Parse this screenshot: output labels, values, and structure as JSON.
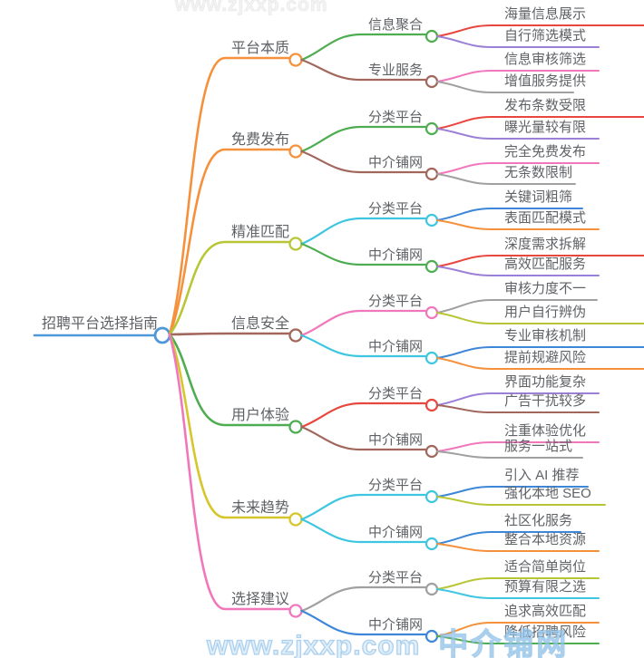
{
  "title": "招聘平台选择指南",
  "palette": {
    "root": "#4E97D8",
    "orange": "#F5913C",
    "green": "#4FAD51",
    "brown": "#A2675C",
    "olive": "#B8C636",
    "yellow": "#D5C62B",
    "pink": "#F177BC",
    "cyan": "#3EC6E0",
    "red": "#E8473F",
    "purple": "#9C7FD6",
    "gray": "#A0A0A0",
    "blue": "#3D86D8"
  },
  "root": {
    "label": "招聘平台选择指南",
    "color": "root"
  },
  "branches": [
    {
      "label": "平台本质",
      "color": "orange",
      "children": [
        {
          "label": "信息聚合",
          "color": "green",
          "leaves": [
            {
              "label": "海量信息展示",
              "color": "red"
            },
            {
              "label": "自行筛选模式",
              "color": "purple"
            }
          ]
        },
        {
          "label": "专业服务",
          "color": "brown",
          "leaves": [
            {
              "label": "信息审核筛选",
              "color": "pink"
            },
            {
              "label": "增值服务提供",
              "color": "gray"
            }
          ]
        }
      ]
    },
    {
      "label": "免费发布",
      "color": "orange",
      "children": [
        {
          "label": "分类平台",
          "color": "green",
          "leaves": [
            {
              "label": "发布条数受限",
              "color": "red"
            },
            {
              "label": "曝光量较有限",
              "color": "purple"
            }
          ]
        },
        {
          "label": "中介铺网",
          "color": "brown",
          "leaves": [
            {
              "label": "完全免费发布",
              "color": "pink"
            },
            {
              "label": "无条数限制",
              "color": "gray"
            }
          ]
        }
      ]
    },
    {
      "label": "精准匹配",
      "color": "olive",
      "children": [
        {
          "label": "分类平台",
          "color": "cyan",
          "leaves": [
            {
              "label": "关键词粗筛",
              "color": "blue"
            },
            {
              "label": "表面匹配模式",
              "color": "orange"
            }
          ]
        },
        {
          "label": "中介铺网",
          "color": "green",
          "leaves": [
            {
              "label": "深度需求拆解",
              "color": "red"
            },
            {
              "label": "高效匹配服务",
              "color": "purple"
            }
          ]
        }
      ]
    },
    {
      "label": "信息安全",
      "color": "brown",
      "children": [
        {
          "label": "分类平台",
          "color": "pink",
          "leaves": [
            {
              "label": "审核力度不一",
              "color": "gray"
            },
            {
              "label": "用户自行辨伪",
              "color": "olive"
            }
          ]
        },
        {
          "label": "中介铺网",
          "color": "cyan",
          "leaves": [
            {
              "label": "专业审核机制",
              "color": "blue"
            },
            {
              "label": "提前规避风险",
              "color": "orange"
            }
          ]
        }
      ]
    },
    {
      "label": "用户体验",
      "color": "green",
      "children": [
        {
          "label": "分类平台",
          "color": "red",
          "leaves": [
            {
              "label": "界面功能复杂",
              "color": "purple"
            },
            {
              "label": "广告干扰较多",
              "color": "brown"
            }
          ]
        },
        {
          "label": "中介铺网",
          "color": "brown",
          "leaves": [
            {
              "label": "注重体验优化",
              "color": "pink"
            },
            {
              "label": "服务一站式",
              "color": "gray"
            }
          ]
        }
      ]
    },
    {
      "label": "未来趋势",
      "color": "yellow",
      "children": [
        {
          "label": "分类平台",
          "color": "cyan",
          "leaves": [
            {
              "label": "引入 AI 推荐",
              "color": "blue"
            },
            {
              "label": "强化本地 SEO",
              "color": "olive"
            }
          ]
        },
        {
          "label": "中介铺网",
          "color": "cyan",
          "leaves": [
            {
              "label": "社区化服务",
              "color": "blue"
            },
            {
              "label": "整合本地资源",
              "color": "orange"
            }
          ]
        }
      ]
    },
    {
      "label": "选择建议",
      "color": "pink",
      "children": [
        {
          "label": "分类平台",
          "color": "gray",
          "leaves": [
            {
              "label": "适合简单岗位",
              "color": "olive"
            },
            {
              "label": "预算有限之选",
              "color": "cyan"
            }
          ]
        },
        {
          "label": "中介铺网",
          "color": "blue",
          "leaves": [
            {
              "label": "追求高效匹配",
              "color": "orange"
            },
            {
              "label": "降低招聘风险",
              "color": "green"
            }
          ]
        }
      ]
    }
  ],
  "watermarks": {
    "top": "www.zjxxp.com",
    "bottom_url": "www.zjxxp.com",
    "bottom_site": "中介铺网"
  }
}
